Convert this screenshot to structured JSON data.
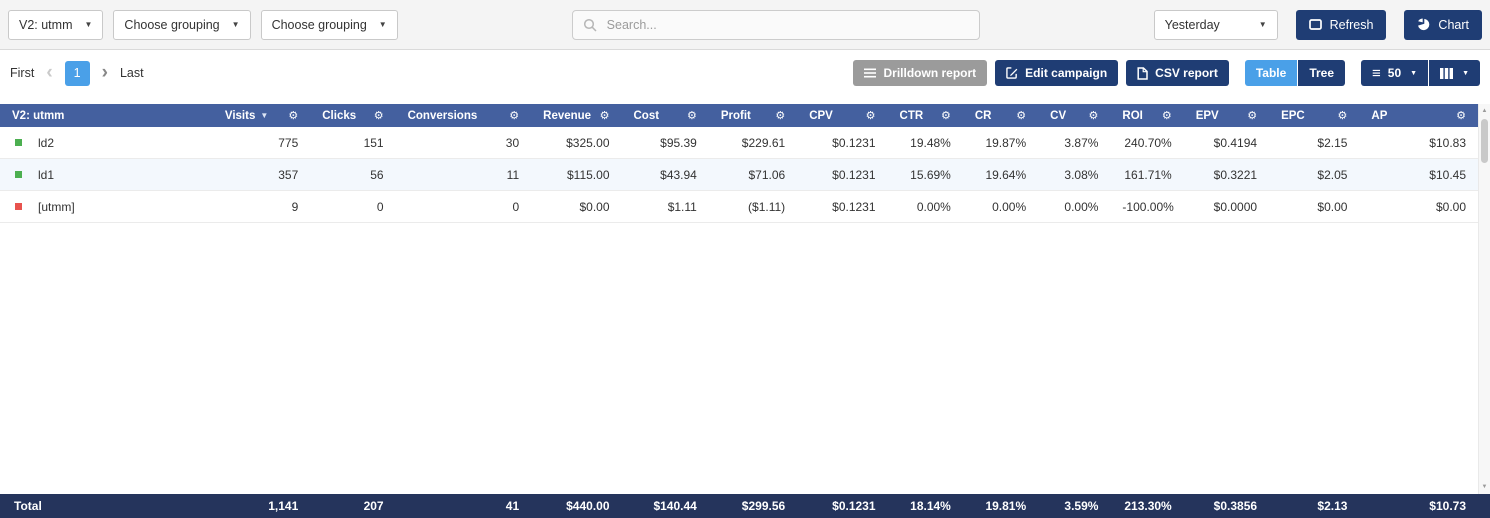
{
  "toolbar": {
    "campaign_dropdown": "V2: utmm",
    "grouping_dropdown_1": "Choose grouping",
    "grouping_dropdown_2": "Choose grouping",
    "search_placeholder": "Search...",
    "date_dropdown": "Yesterday",
    "refresh_button": "Refresh",
    "chart_button": "Chart"
  },
  "pagination": {
    "first_label": "First",
    "current_page": "1",
    "last_label": "Last"
  },
  "actions": {
    "drilldown_button": "Drilldown report",
    "edit_campaign_button": "Edit campaign",
    "csv_button": "CSV report",
    "table_toggle": "Table",
    "tree_toggle": "Tree",
    "rows_per_page": "50"
  },
  "icons": {
    "gear": "⚙",
    "sort_desc": "▼",
    "caret_down": "▼",
    "chevron_left": "‹",
    "chevron_right": "›",
    "hamburger": "≡",
    "scroll_up": "▲",
    "scroll_down": "▼"
  },
  "table": {
    "column_keys": [
      "visits",
      "clicks",
      "conversions",
      "revenue",
      "cost",
      "profit",
      "cpv",
      "ctr",
      "cr",
      "cv",
      "roi",
      "epv",
      "epc",
      "ap"
    ],
    "columns": [
      {
        "label": "V2: utmm",
        "gear": false,
        "sorted": false
      },
      {
        "label": "Visits",
        "gear": true,
        "sorted": true
      },
      {
        "label": "Clicks",
        "gear": true,
        "sorted": false
      },
      {
        "label": "Conversions",
        "gear": true,
        "sorted": false
      },
      {
        "label": "Revenue",
        "gear": true,
        "sorted": false
      },
      {
        "label": "Cost",
        "gear": true,
        "sorted": false
      },
      {
        "label": "Profit",
        "gear": true,
        "sorted": false
      },
      {
        "label": "CPV",
        "gear": true,
        "sorted": false
      },
      {
        "label": "CTR",
        "gear": true,
        "sorted": false
      },
      {
        "label": "CR",
        "gear": true,
        "sorted": false
      },
      {
        "label": "CV",
        "gear": true,
        "sorted": false
      },
      {
        "label": "ROI",
        "gear": true,
        "sorted": false
      },
      {
        "label": "EPV",
        "gear": true,
        "sorted": false
      },
      {
        "label": "EPC",
        "gear": true,
        "sorted": false
      },
      {
        "label": "AP",
        "gear": true,
        "sorted": false
      }
    ],
    "rows": [
      {
        "indicator": "green",
        "name": "ld2",
        "values": [
          "775",
          "151",
          "30",
          "$325.00",
          "$95.39",
          "$229.61",
          "$0.1231",
          "19.48%",
          "19.87%",
          "3.87%",
          "240.70%",
          "$0.4194",
          "$2.15",
          "$10.83"
        ]
      },
      {
        "indicator": "green",
        "name": "ld1",
        "values": [
          "357",
          "56",
          "11",
          "$115.00",
          "$43.94",
          "$71.06",
          "$0.1231",
          "15.69%",
          "19.64%",
          "3.08%",
          "161.71%",
          "$0.3221",
          "$2.05",
          "$10.45"
        ]
      },
      {
        "indicator": "red",
        "name": "[utmm]",
        "values": [
          "9",
          "0",
          "0",
          "$0.00",
          "$1.11",
          "($1.11)",
          "$0.1231",
          "0.00%",
          "0.00%",
          "0.00%",
          "-100.00%",
          "$0.0000",
          "$0.00",
          "$0.00"
        ]
      }
    ],
    "total": {
      "label": "Total",
      "values": [
        "1,141",
        "207",
        "41",
        "$440.00",
        "$140.44",
        "$299.56",
        "$0.1231",
        "18.14%",
        "19.81%",
        "3.59%",
        "213.30%",
        "$0.3856",
        "$2.13",
        "$10.73"
      ]
    }
  },
  "colors": {
    "header_bg": "#44609f",
    "footer_bg": "#25345c",
    "accent_blue": "#4aa0e8",
    "button_navy": "#1f3d74",
    "disabled_gray": "#9b9b9b",
    "row_alt": "#f3f8fd",
    "positive": "#35a74d",
    "negative": "#e8534e",
    "positive_on_dark": "#3fd468",
    "status_green": "#4caf50",
    "status_red": "#e8534e"
  }
}
